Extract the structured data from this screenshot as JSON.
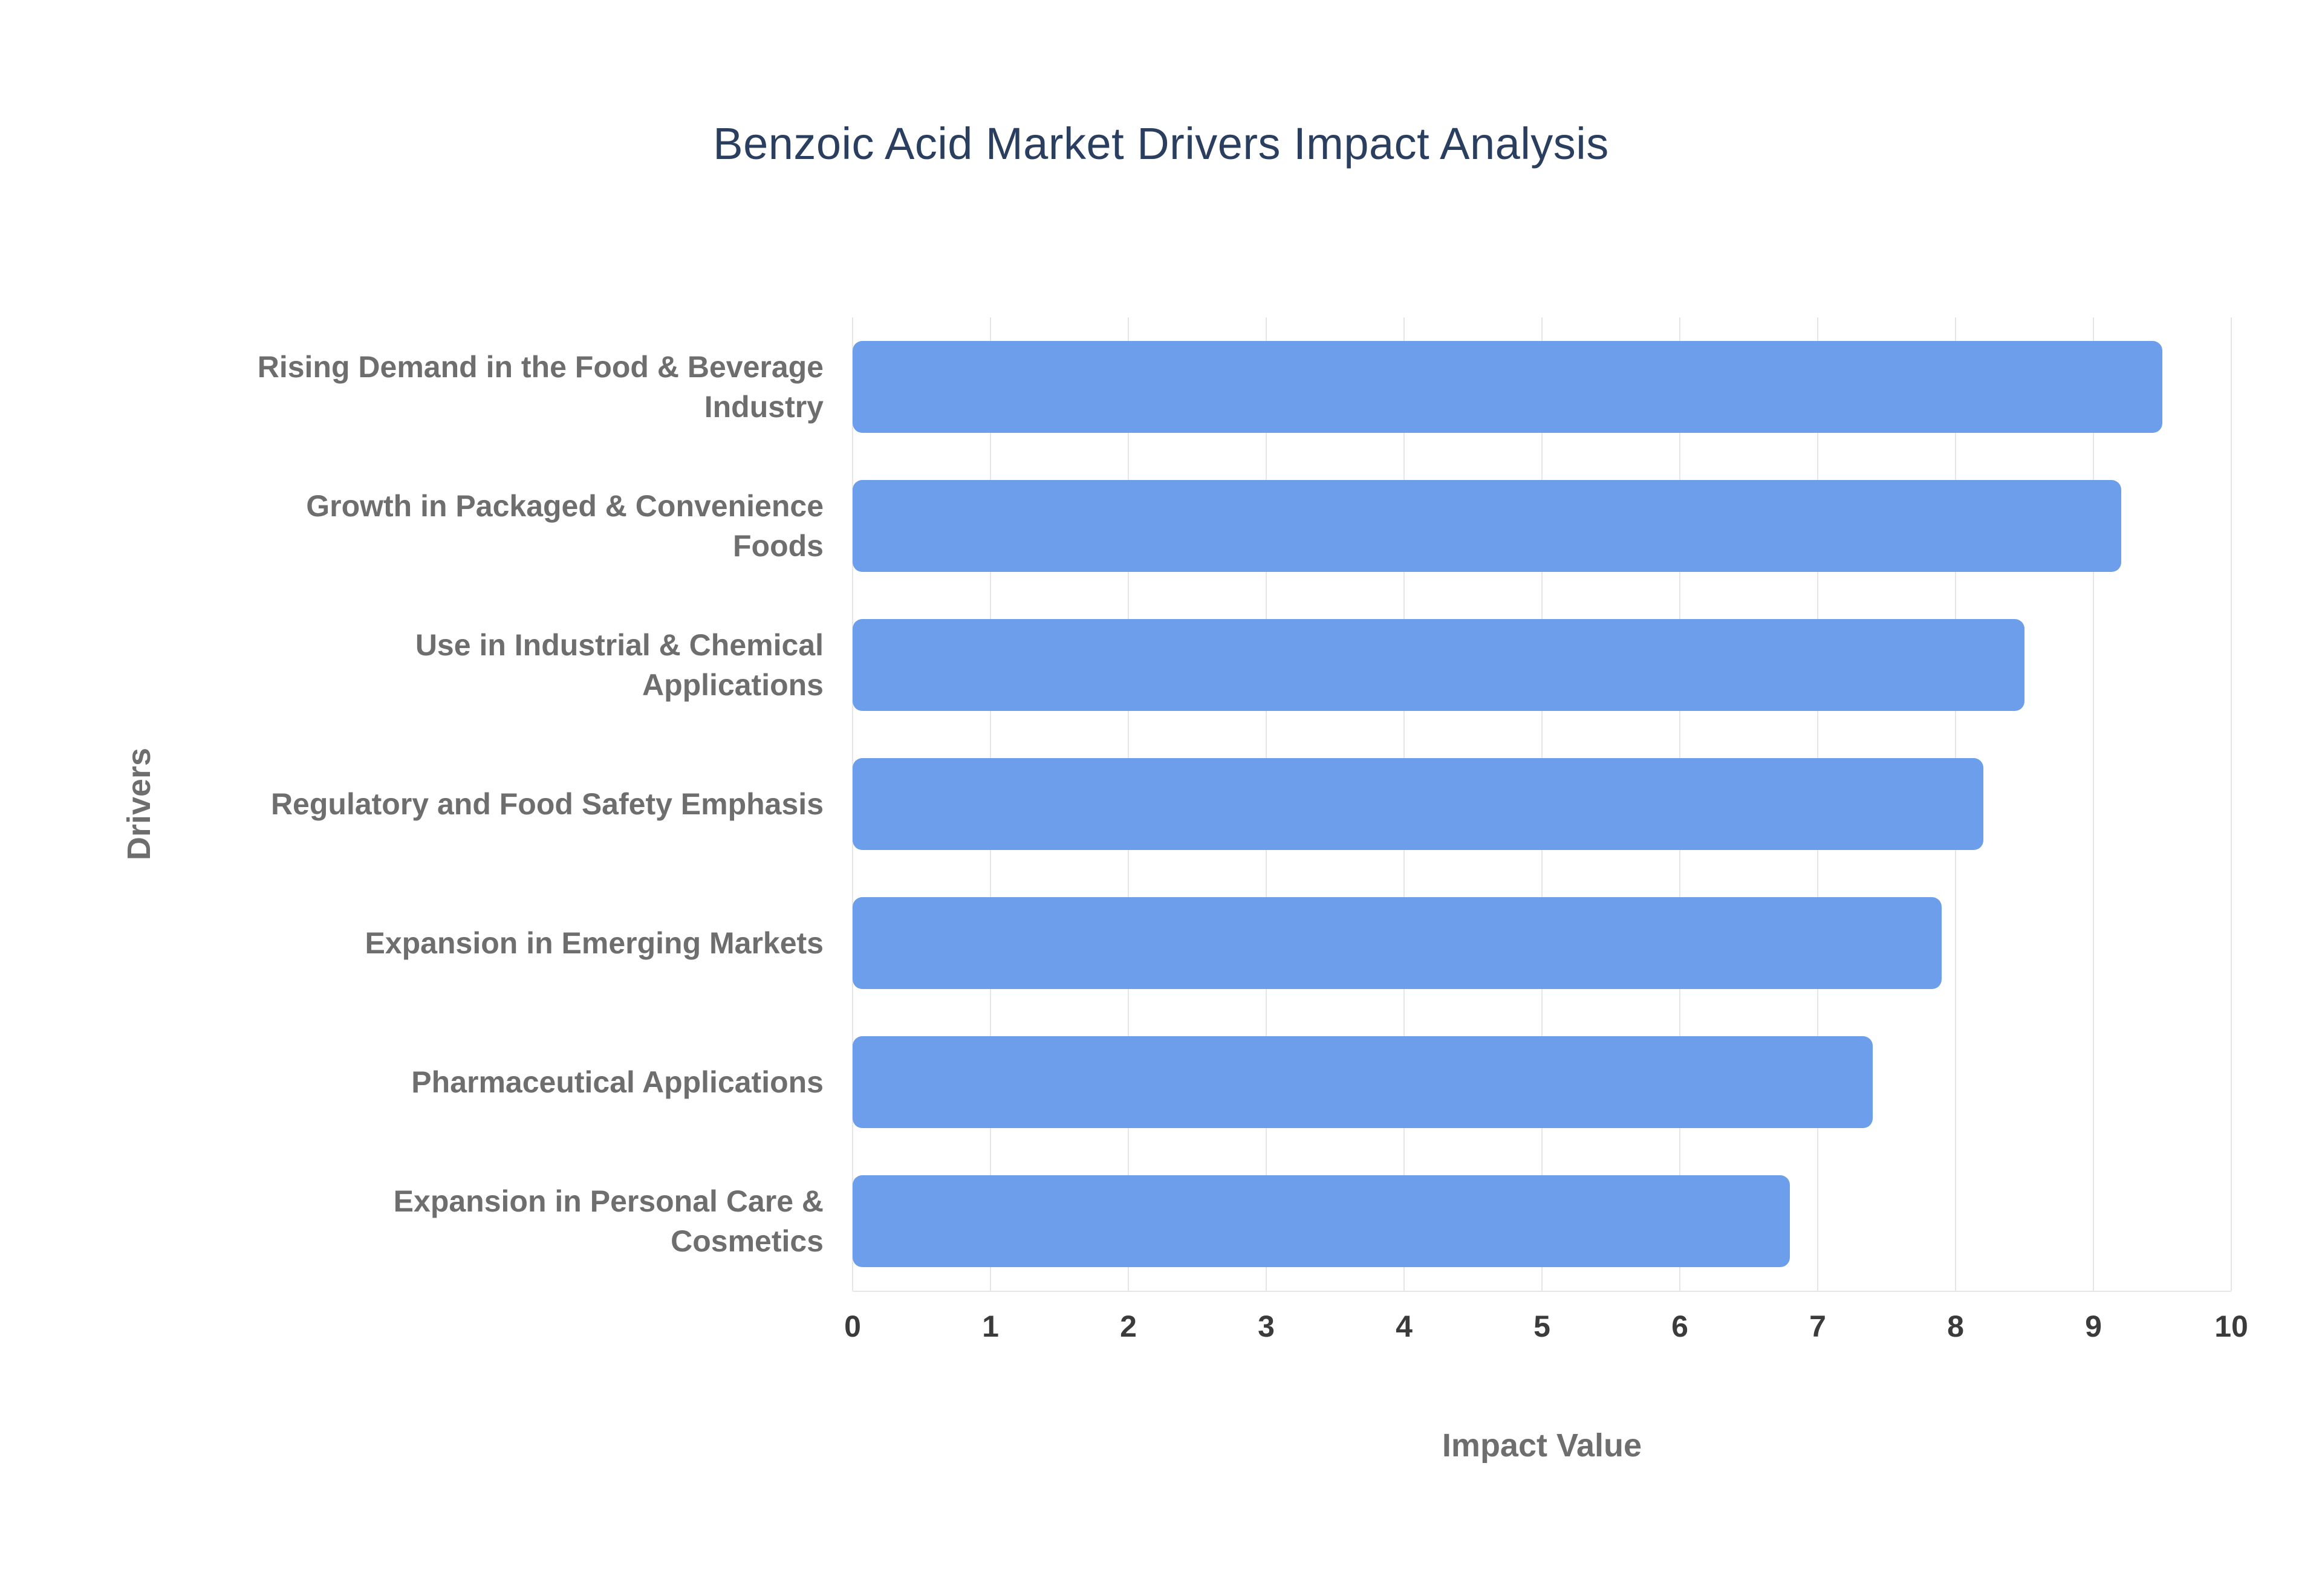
{
  "chart_data": {
    "type": "bar",
    "orientation": "horizontal",
    "title": "Benzoic Acid Market Drivers Impact Analysis",
    "xlabel": "Impact Value",
    "ylabel": "Drivers",
    "categories": [
      "Rising Demand in the Food & Beverage Industry",
      "Growth in Packaged & Convenience Foods",
      "Use in Industrial & Chemical Applications",
      "Regulatory and Food Safety Emphasis",
      "Expansion in Emerging Markets",
      "Pharmaceutical Applications",
      "Expansion in Personal Care & Cosmetics"
    ],
    "values": [
      9.5,
      9.2,
      8.5,
      8.2,
      7.9,
      7.4,
      6.8
    ],
    "xlim": [
      0,
      10
    ],
    "xticks": [
      0,
      1,
      2,
      3,
      4,
      5,
      6,
      7,
      8,
      9,
      10
    ],
    "bar_color": "#6d9eeb",
    "gridline_color": "#e6e6e6",
    "grid": true,
    "legend": false
  }
}
